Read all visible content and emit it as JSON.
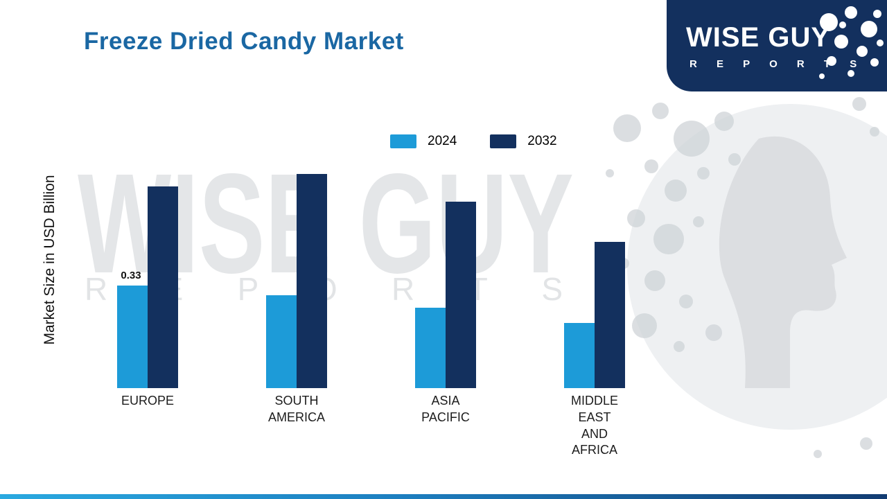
{
  "chart_data": {
    "type": "bar",
    "title": "Freeze Dried Candy Market",
    "ylabel": "Market Size in USD Billion",
    "categories": [
      "EUROPE",
      "SOUTH AMERICA",
      "ASIA PACIFIC",
      "MIDDLE EAST AND AFRICA"
    ],
    "category_lines": [
      [
        "EUROPE"
      ],
      [
        "SOUTH",
        "AMERICA"
      ],
      [
        "ASIA",
        "PACIFIC"
      ],
      [
        "MIDDLE",
        "EAST",
        "AND",
        "AFRICA"
      ]
    ],
    "series": [
      {
        "name": "2024",
        "color": "#1d9bd8",
        "values": [
          0.33,
          0.3,
          0.26,
          0.21
        ]
      },
      {
        "name": "2032",
        "color": "#13305e",
        "values": [
          0.65,
          0.69,
          0.6,
          0.47
        ]
      }
    ],
    "ylim": [
      0,
      0.75
    ],
    "grid": false,
    "legend_position": "top-center",
    "data_labels": [
      {
        "series": 0,
        "category": 0,
        "text": "0.33"
      }
    ]
  },
  "brand": {
    "line1": "WISE GUY",
    "line2": "R E P O R T S"
  },
  "watermark": {
    "line1": "WISE GUY",
    "line2": "R E P O R T S"
  },
  "colors": {
    "title_blue": "#1a67a3",
    "accent_blue": "#1d9bd8",
    "navy": "#13305e"
  }
}
